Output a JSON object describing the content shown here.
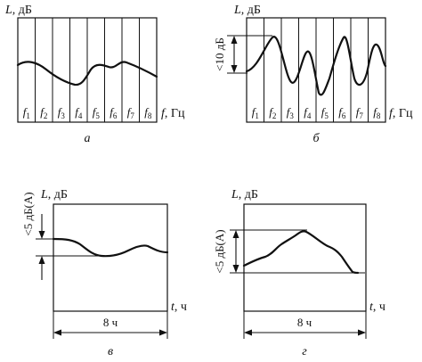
{
  "panels": {
    "a": {
      "caption": "а",
      "y_axis": {
        "symbol": "L",
        "unit": ", дБ"
      },
      "x_axis": {
        "symbol": "f",
        "unit": ", Гц"
      },
      "band_symbol": "f",
      "bands": [
        "1",
        "2",
        "3",
        "4",
        "5",
        "6",
        "7",
        "8"
      ]
    },
    "b": {
      "caption": "б",
      "y_axis": {
        "symbol": "L",
        "unit": ", дБ"
      },
      "x_axis": {
        "symbol": "f",
        "unit": ", Гц"
      },
      "band_symbol": "f",
      "bands": [
        "1",
        "2",
        "3",
        "4",
        "5",
        "6",
        "7",
        "8"
      ],
      "level_range": "<10 дБ"
    },
    "c": {
      "caption": "в",
      "y_axis": {
        "symbol": "L",
        "unit": ", дБ"
      },
      "x_axis": {
        "symbol": "t",
        "unit": ", ч"
      },
      "level_range": "<5 дБ(A)",
      "duration": "8 ч"
    },
    "d": {
      "caption": "г",
      "y_axis": {
        "symbol": "L",
        "unit": ", дБ"
      },
      "x_axis": {
        "symbol": "t",
        "unit": ", ч"
      },
      "level_range": "<5 дБ(A)",
      "duration": "8 ч"
    }
  }
}
